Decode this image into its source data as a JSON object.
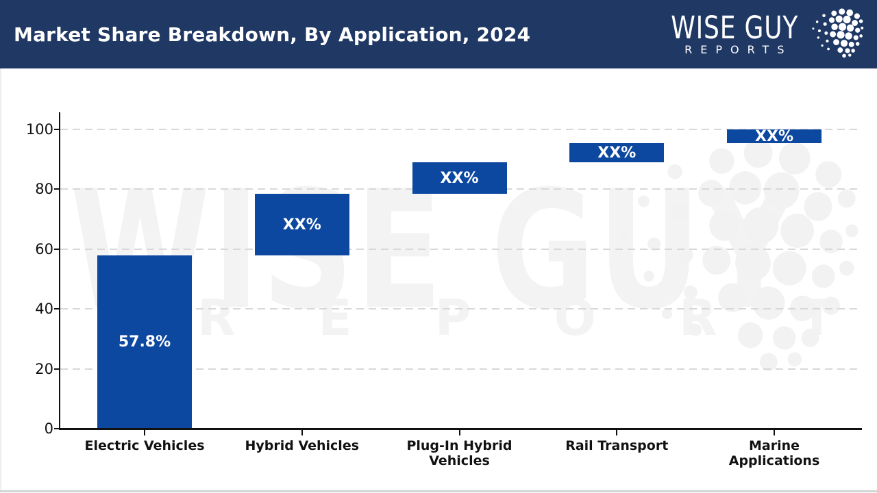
{
  "header": {
    "title": "Market Share Breakdown, By Application, 2024",
    "logo": {
      "wordmark": "WISE GUY",
      "subtext": "REPORTS"
    }
  },
  "watermark": {
    "wordmark": "WISE GUY",
    "subtext": "R E P O R T S"
  },
  "colors": {
    "header_bg": "#203864",
    "bar": "#0c47a0",
    "bar_label_text": "#ffffff",
    "grid": "#d8d8d8",
    "axis": "#111111",
    "watermark": "#f3f3f3",
    "title_text": "#ffffff"
  },
  "chart_data": {
    "type": "bar",
    "subtype": "waterfall",
    "title": "Market Share Breakdown, By Application, 2024",
    "categories": [
      "Electric Vehicles",
      "Hybrid Vehicles",
      "Plug-In Hybrid\nVehicles",
      "Rail Transport",
      "Marine\nApplications"
    ],
    "segments": [
      {
        "category": "Electric Vehicles",
        "start": 0,
        "end": 57.8,
        "label": "57.8%"
      },
      {
        "category": "Hybrid Vehicles",
        "start": 57.8,
        "end": 78.5,
        "label": "XX%"
      },
      {
        "category": "Plug-In Hybrid Vehicles",
        "start": 78.5,
        "end": 89,
        "label": "XX%"
      },
      {
        "category": "Rail Transport",
        "start": 89,
        "end": 95.4,
        "label": "XX%"
      },
      {
        "category": "Marine Applications",
        "start": 95.4,
        "end": 100,
        "label": "XX%"
      }
    ],
    "ylim": [
      0,
      100
    ],
    "yticks": [
      0,
      20,
      40,
      60,
      80,
      100
    ],
    "xlabel": "",
    "ylabel": "",
    "grid": "horizontal-dashed",
    "legend": null,
    "bar_color": "#0c47a0"
  }
}
